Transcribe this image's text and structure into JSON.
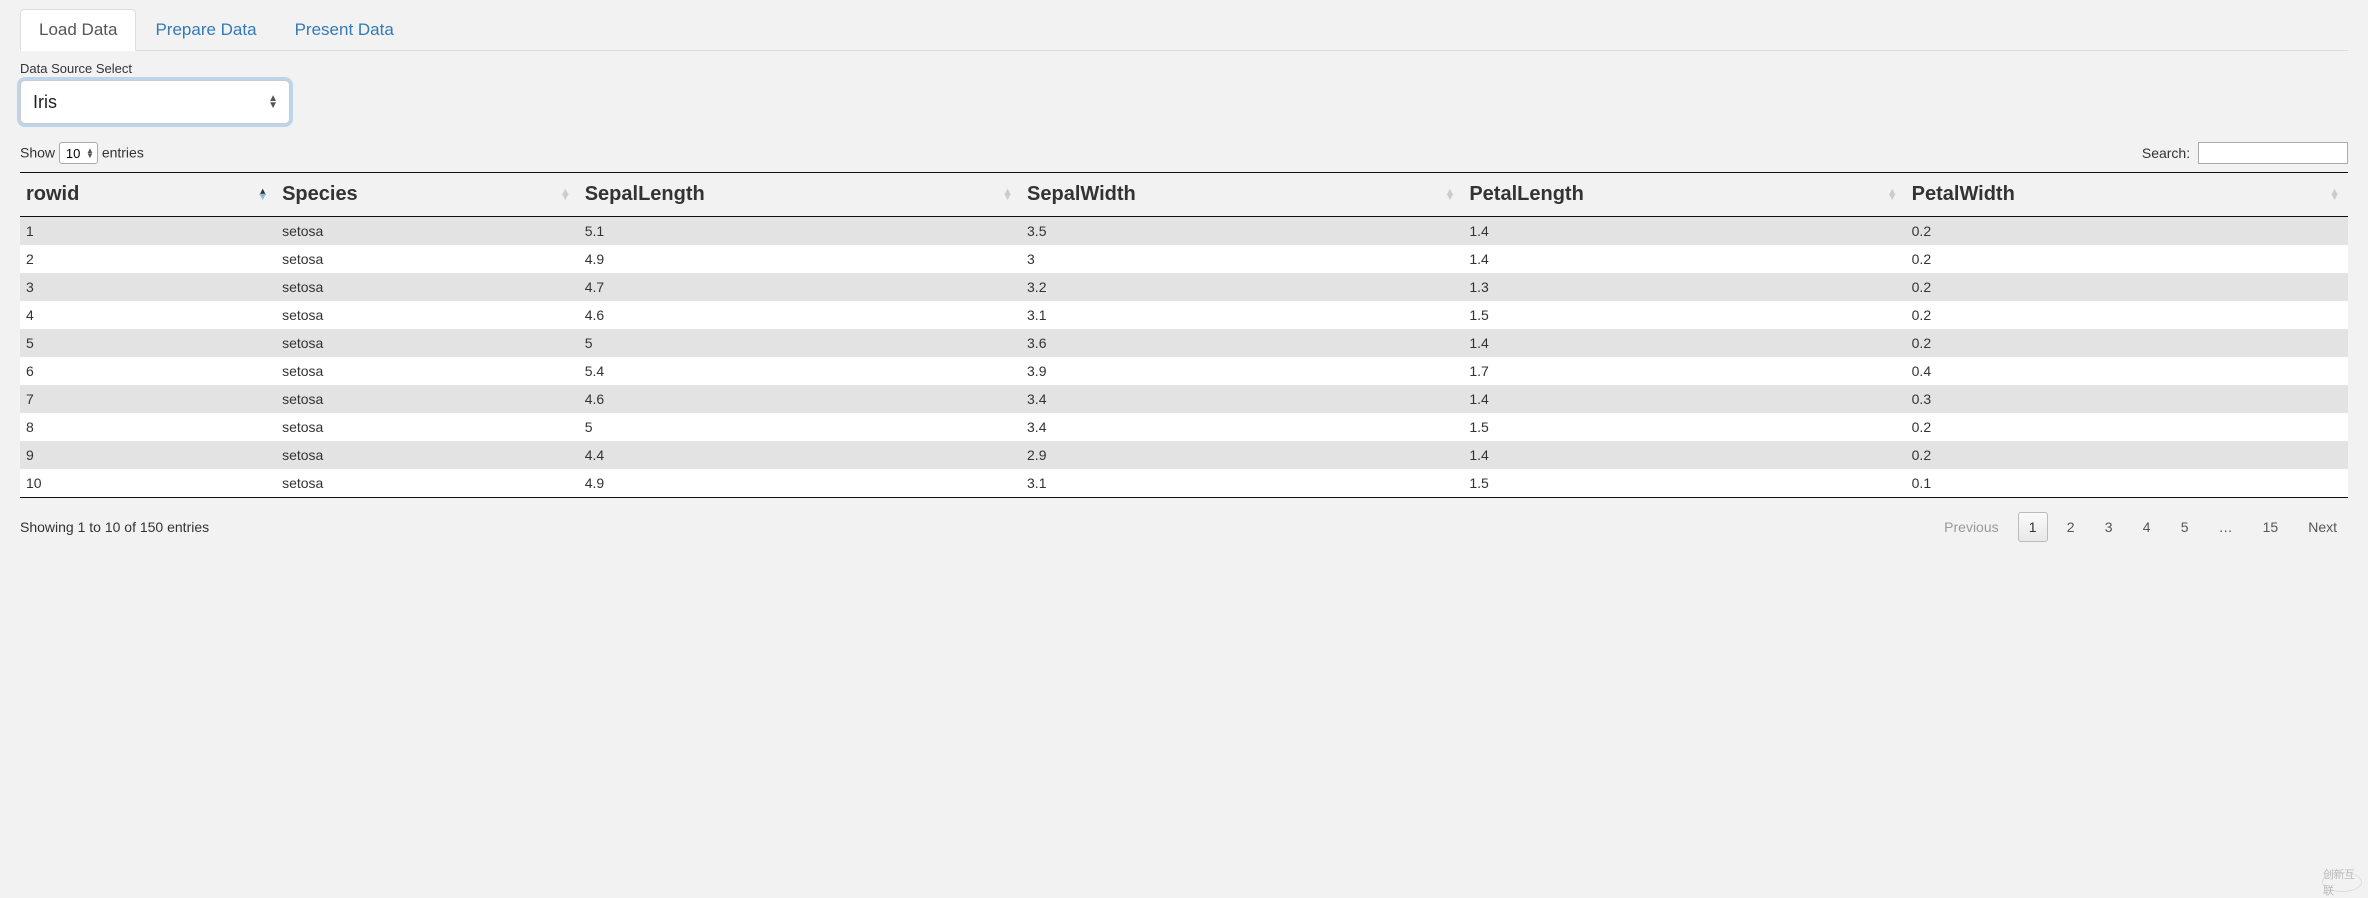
{
  "tabs": [
    {
      "label": "Load Data",
      "active": true
    },
    {
      "label": "Prepare Data",
      "active": false
    },
    {
      "label": "Present Data",
      "active": false
    }
  ],
  "source_select": {
    "label": "Data Source Select",
    "value": "Iris"
  },
  "show_entries": {
    "prefix": "Show",
    "value": "10",
    "suffix": "entries"
  },
  "search": {
    "label": "Search:",
    "value": ""
  },
  "table": {
    "columns": [
      {
        "label": "rowid",
        "sorted": "asc"
      },
      {
        "label": "Species",
        "sorted": null
      },
      {
        "label": "SepalLength",
        "sorted": null
      },
      {
        "label": "SepalWidth",
        "sorted": null
      },
      {
        "label": "PetalLength",
        "sorted": null
      },
      {
        "label": "PetalWidth",
        "sorted": null
      }
    ],
    "rows": [
      [
        "1",
        "setosa",
        "5.1",
        "3.5",
        "1.4",
        "0.2"
      ],
      [
        "2",
        "setosa",
        "4.9",
        "3",
        "1.4",
        "0.2"
      ],
      [
        "3",
        "setosa",
        "4.7",
        "3.2",
        "1.3",
        "0.2"
      ],
      [
        "4",
        "setosa",
        "4.6",
        "3.1",
        "1.5",
        "0.2"
      ],
      [
        "5",
        "setosa",
        "5",
        "3.6",
        "1.4",
        "0.2"
      ],
      [
        "6",
        "setosa",
        "5.4",
        "3.9",
        "1.7",
        "0.4"
      ],
      [
        "7",
        "setosa",
        "4.6",
        "3.4",
        "1.4",
        "0.3"
      ],
      [
        "8",
        "setosa",
        "5",
        "3.4",
        "1.5",
        "0.2"
      ],
      [
        "9",
        "setosa",
        "4.4",
        "2.9",
        "1.4",
        "0.2"
      ],
      [
        "10",
        "setosa",
        "4.9",
        "3.1",
        "1.5",
        "0.1"
      ]
    ],
    "column_widths_pct": [
      11,
      13,
      19,
      19,
      19,
      19
    ]
  },
  "info": "Showing 1 to 10 of 150 entries",
  "pagination": {
    "previous": "Previous",
    "next": "Next",
    "pages": [
      "1",
      "2",
      "3",
      "4",
      "5",
      "…",
      "15"
    ],
    "current_index": 0
  },
  "watermark": "创新互联",
  "colors": {
    "background": "#f2f2f2",
    "link": "#337ab7",
    "row_odd": "#e3e3e3",
    "row_even": "#ffffff",
    "select_glow": "rgba(153,194,230,0.6)"
  }
}
